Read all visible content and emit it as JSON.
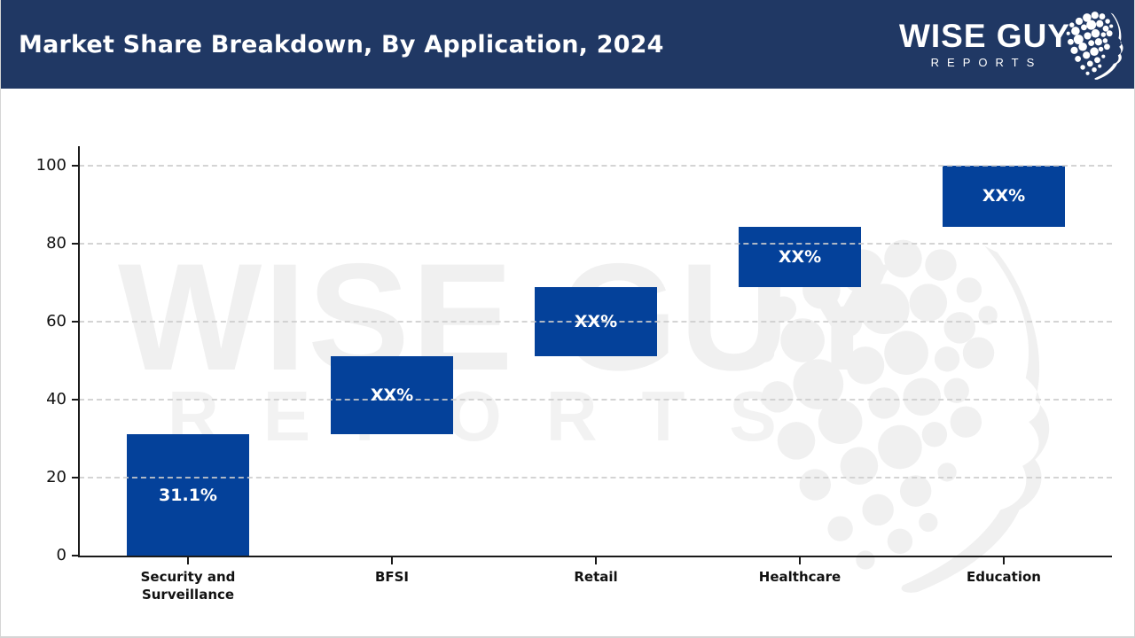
{
  "header": {
    "title": "Market Share Breakdown, By Application, 2024",
    "bg_color": "#203864",
    "logo": {
      "line1": "WISE GUY",
      "line2": "REPORTS"
    }
  },
  "watermark": {
    "line1": "WISE GUY",
    "line2": "REPORTS"
  },
  "chart_data": {
    "type": "bar",
    "subtype": "waterfall",
    "title": "Market Share Breakdown, By Application, 2024",
    "categories": [
      "Security and Surveillance",
      "BFSI",
      "Retail",
      "Healthcare",
      "Education"
    ],
    "bar_labels": [
      "31.1%",
      "XX%",
      "XX%",
      "XX%",
      "XX%"
    ],
    "values": [
      31.1,
      20.0,
      17.7,
      15.6,
      15.6
    ],
    "cumulative_start": [
      0,
      31.1,
      51.1,
      68.8,
      84.4
    ],
    "cumulative_end": [
      31.1,
      51.1,
      68.8,
      84.4,
      100.0
    ],
    "yticks": [
      0,
      20,
      40,
      60,
      80,
      100
    ],
    "ylim": [
      0,
      105
    ],
    "xlabel": "",
    "ylabel": "",
    "bar_color": "#04419a",
    "grid": "dashed-horizontal",
    "legend": "none"
  }
}
